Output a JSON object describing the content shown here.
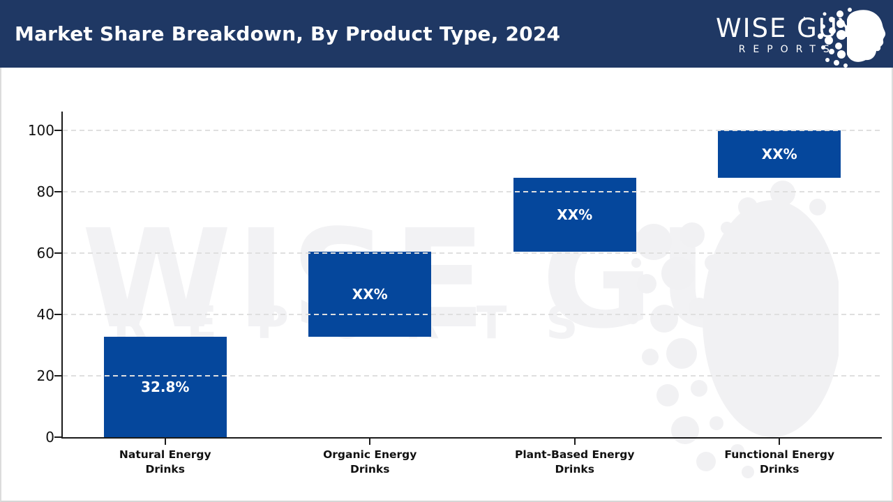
{
  "header": {
    "title": "Market Share Breakdown, By Product Type, 2024",
    "bg_color": "#1f3864",
    "logo": {
      "line1": "WISE GUY",
      "line2": "REPORTS"
    }
  },
  "watermark": {
    "line1": "WISE GU",
    "line2": "REPORTS"
  },
  "chart_data": {
    "type": "bar",
    "subtype": "waterfall",
    "title": "Market Share Breakdown, By Product Type, 2024",
    "categories": [
      "Natural Energy\nDrinks",
      "Organic Energy\nDrinks",
      "Plant-Based Energy\nDrinks",
      "Functional Energy\nDrinks"
    ],
    "segments": [
      {
        "category": "Natural Energy Drinks",
        "start": 0,
        "end": 32.8,
        "label": "32.8%"
      },
      {
        "category": "Organic Energy Drinks",
        "start": 32.8,
        "end": 60.4,
        "label": "XX%"
      },
      {
        "category": "Plant-Based Energy Drinks",
        "start": 60.4,
        "end": 84.6,
        "label": "XX%"
      },
      {
        "category": "Functional Energy Drinks",
        "start": 84.6,
        "end": 100,
        "label": "XX%"
      }
    ],
    "xlabel": "",
    "ylabel": "",
    "ylim": [
      0,
      100
    ],
    "yticks": [
      0,
      20,
      40,
      60,
      80,
      100
    ],
    "grid": "horizontal dashed, drawn over bars",
    "legend": "none",
    "bar_color": "#05479c",
    "bar_label_color": "#ffffff",
    "axis_color": "#1a1a1a",
    "gridline_color": "#dfdfdf"
  }
}
